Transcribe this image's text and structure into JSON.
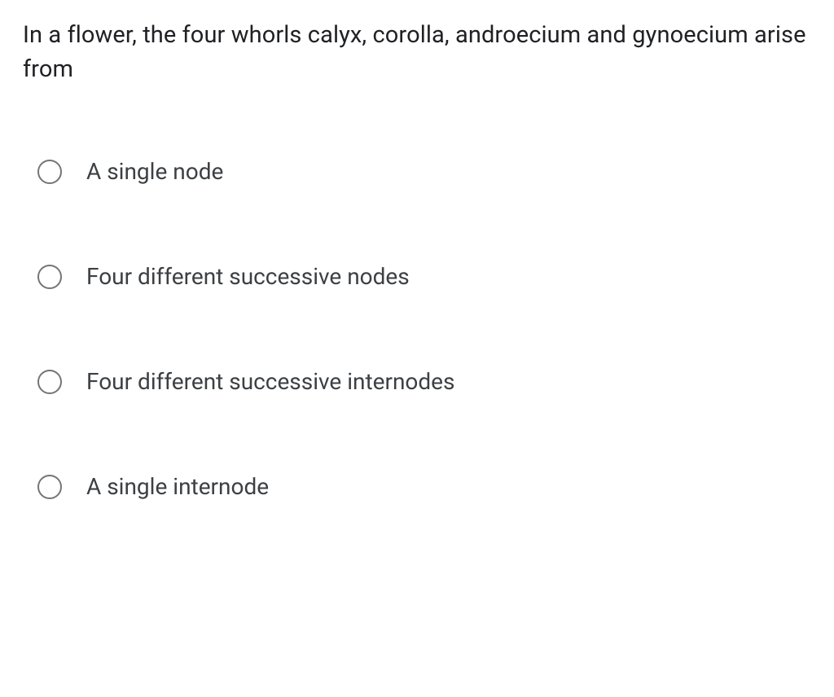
{
  "question": {
    "text": "In a flower, the four whorls calyx, corolla, androecium and gynoecium arise from",
    "fontsize": 29,
    "color": "#202124"
  },
  "options": [
    {
      "label": "A single node",
      "selected": false
    },
    {
      "label": "Four different successive nodes",
      "selected": false
    },
    {
      "label": "Four different successive internodes",
      "selected": false
    },
    {
      "label": "A single internode",
      "selected": false
    }
  ],
  "style": {
    "background": "#ffffff",
    "radio_border_color": "#757575",
    "option_fontsize": 28,
    "option_color": "#3c4043"
  }
}
